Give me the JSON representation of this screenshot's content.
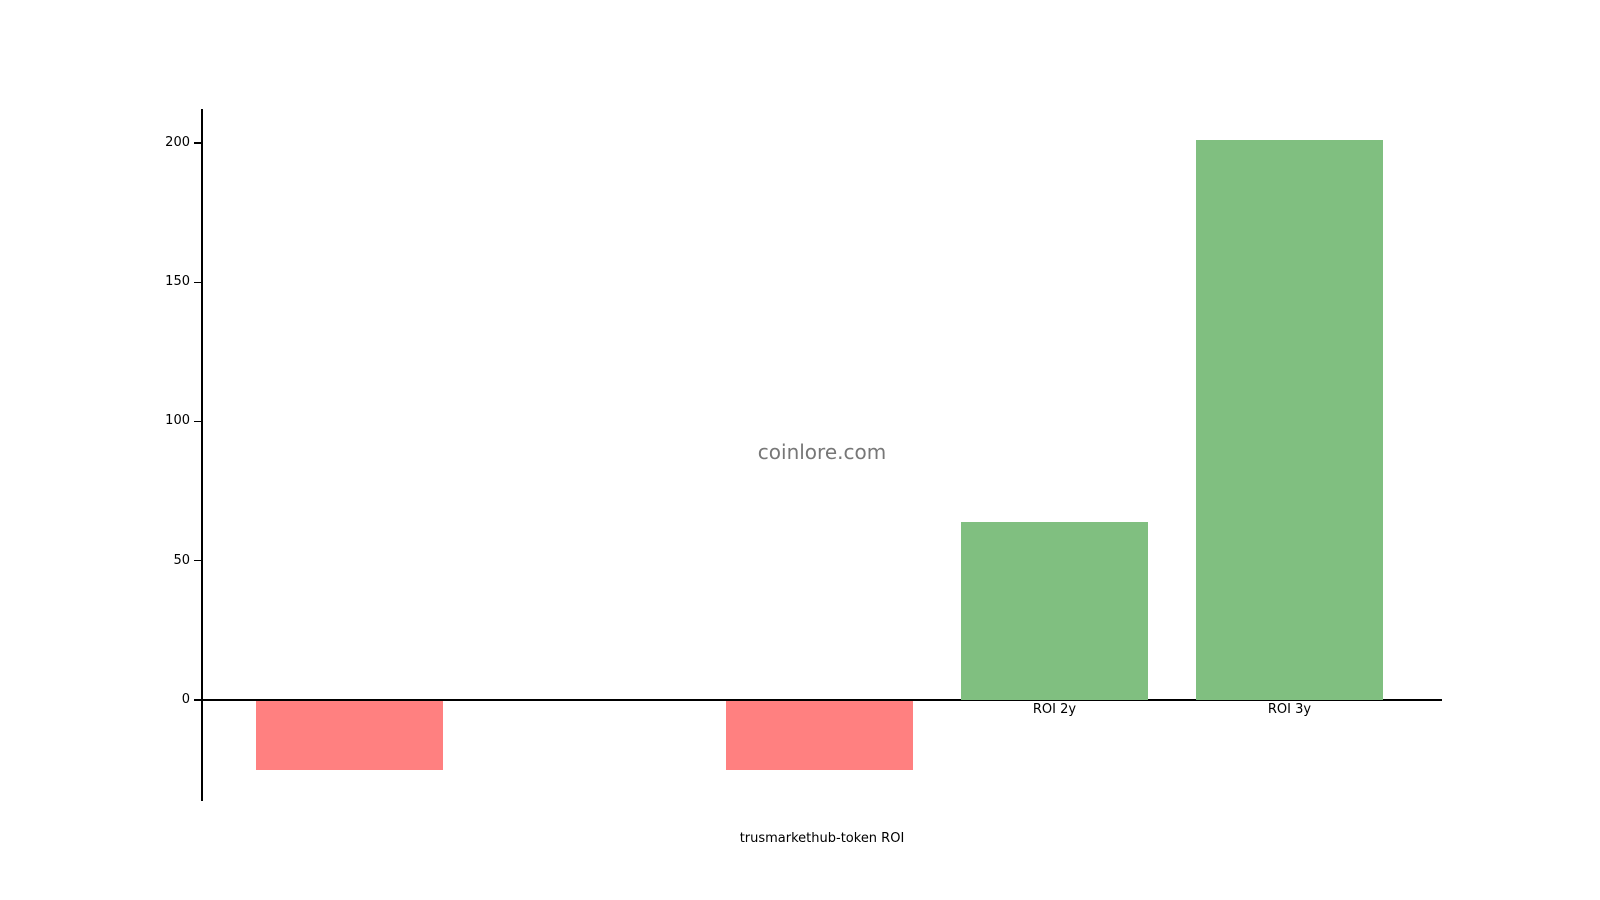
{
  "chart_data": {
    "type": "bar",
    "title": "",
    "xlabel": "trusmarkethub-token ROI",
    "ylabel": "",
    "watermark": "coinlore.com",
    "legend": null,
    "grid": false,
    "num_slots": 5,
    "yticks": [
      0,
      50,
      100,
      150,
      200
    ],
    "ylim": [
      -36.3,
      212.2
    ],
    "categories": [
      "",
      "",
      "",
      "ROI 2y",
      "ROI 3y"
    ],
    "bars": [
      {
        "slot": 0,
        "label": "",
        "value": -25,
        "color": "#ff8080"
      },
      {
        "slot": 2,
        "label": "",
        "value": -25,
        "color": "#ff8080"
      },
      {
        "slot": 3,
        "label": "ROI 2y",
        "value": 64,
        "color": "#80bf80"
      },
      {
        "slot": 4,
        "label": "ROI 3y",
        "value": 201,
        "color": "#80bf80"
      }
    ],
    "colors": {
      "negative": "#ff8080",
      "positive": "#80bf80",
      "axis": "#000000",
      "text": "#000000",
      "watermark": "#777777"
    }
  }
}
